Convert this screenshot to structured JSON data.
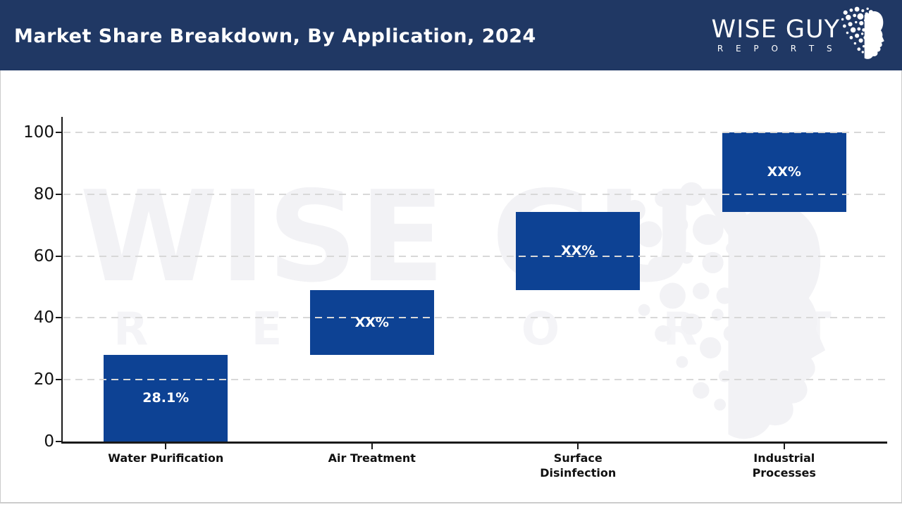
{
  "header": {
    "title": "Market Share Breakdown, By Application, 2024",
    "logo": {
      "name": "WISE GUY",
      "sub": "R E P O R T S"
    }
  },
  "watermark": {
    "name": "WISE GUY",
    "sub": "R E P O R T S"
  },
  "chart_data": {
    "type": "bar",
    "variant": "waterfall",
    "title": "Market Share Breakdown, By Application, 2024",
    "categories": [
      "Water Purification",
      "Air Treatment",
      "Surface\nDisinfection",
      "Industrial\nProcesses"
    ],
    "segments": [
      {
        "category": "Water Purification",
        "start": 0,
        "end": 28.1,
        "label": "28.1%"
      },
      {
        "category": "Air Treatment",
        "start": 28.1,
        "end": 49.0,
        "label": "XX%"
      },
      {
        "category": "Surface Disinfection",
        "start": 49.0,
        "end": 74.3,
        "label": "XX%"
      },
      {
        "category": "Industrial Processes",
        "start": 74.3,
        "end": 100,
        "label": "XX%"
      }
    ],
    "yticks": [
      0,
      20,
      40,
      60,
      80,
      100
    ],
    "ylim": [
      0,
      105
    ],
    "grid": true,
    "legend": false,
    "colors": {
      "bar": "#0d4294",
      "value_label": "#ffffff",
      "grid": "#d8d8d8",
      "axis": "#1a1a1a",
      "header_bg": "#203864",
      "watermark": "#f2f2f5"
    }
  }
}
